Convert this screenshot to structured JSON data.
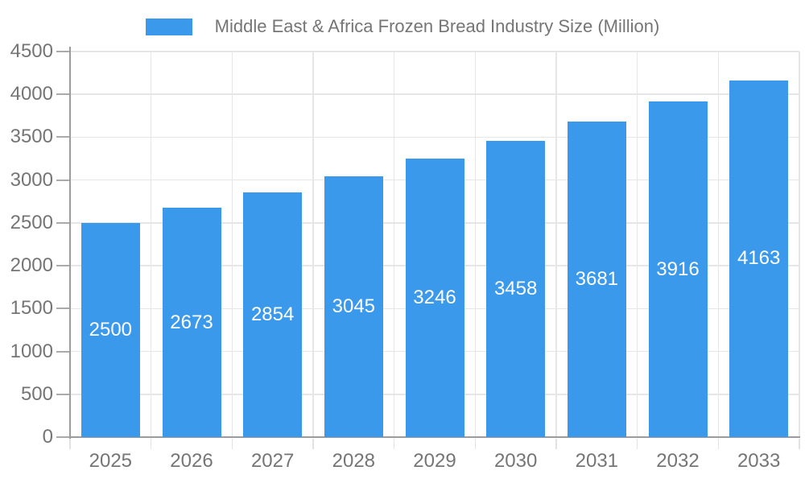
{
  "legend": {
    "label": "Middle East & Africa Frozen Bread Industry Size (Million)",
    "position": "top"
  },
  "chart_data": {
    "type": "bar",
    "title": "Middle East & Africa Frozen Bread Industry Size (Million)",
    "categories": [
      "2025",
      "2026",
      "2027",
      "2028",
      "2029",
      "2030",
      "2031",
      "2032",
      "2033"
    ],
    "values": [
      2500,
      2673,
      2854,
      3045,
      3246,
      3458,
      3681,
      3916,
      4163
    ],
    "series": [
      {
        "name": "Middle East & Africa Frozen Bread Industry Size (Million)",
        "values": [
          2500,
          2673,
          2854,
          3045,
          3246,
          3458,
          3681,
          3916,
          4163
        ]
      }
    ],
    "xlabel": "",
    "ylabel": "",
    "ylim": [
      0,
      4500
    ],
    "yticks": [
      0,
      500,
      1000,
      1500,
      2000,
      2500,
      3000,
      3500,
      4000,
      4500
    ],
    "grid": true,
    "legend_position": "top",
    "bar_label_position": "inside-center",
    "colors": {
      "bar": "#3B99EC",
      "bar_label": "#FFFFFF",
      "title_text": "#757575",
      "axis_label": "#757575",
      "axis_line": "#9C9C9C",
      "y_tick": "#AAAAAA",
      "x_tick": "#E2E2E2",
      "grid_line": "#E6E6E6",
      "background": "#FFFFFF"
    }
  }
}
